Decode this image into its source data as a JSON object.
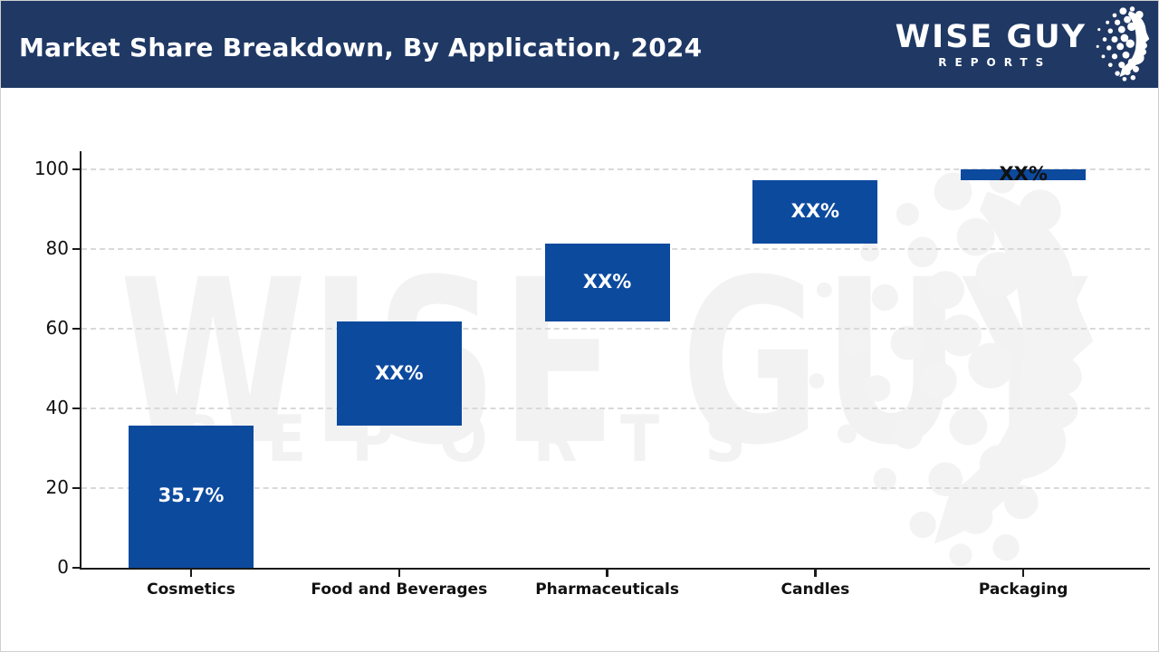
{
  "header": {
    "title": "Market Share Breakdown, By Application, 2024",
    "bg_color": "#1f3864",
    "brand_line1": "WISE GUY",
    "brand_line2": "REPORTS"
  },
  "watermark": {
    "line1": "WISE GUY",
    "line2": "REPORTS"
  },
  "chart_data": {
    "type": "bar",
    "subtype": "waterfall",
    "title": "Market Share Breakdown, By Application, 2024",
    "xlabel": "",
    "ylabel": "",
    "ylim": [
      0,
      105
    ],
    "y_ticks": [
      0,
      20,
      40,
      60,
      80,
      100
    ],
    "grid": "horizontal-dashed",
    "legend": "none",
    "bar_color": "#0c4a9e",
    "axis_color": "#1a1a1a",
    "gridline_color": "#d9d9d9",
    "categories": [
      "Cosmetics",
      "Food and Beverages",
      "Pharmaceuticals",
      "Candles",
      "Packaging"
    ],
    "segments": [
      {
        "category": "Cosmetics",
        "start": 0,
        "end": 35.7,
        "value": 35.7,
        "label": "35.7%",
        "label_color": "#ffffff"
      },
      {
        "category": "Food and Beverages",
        "start": 35.7,
        "end": 61.8,
        "value": 26.1,
        "label": "XX%",
        "label_color": "#ffffff"
      },
      {
        "category": "Pharmaceuticals",
        "start": 61.8,
        "end": 81.4,
        "value": 19.6,
        "label": "XX%",
        "label_color": "#ffffff"
      },
      {
        "category": "Candles",
        "start": 81.4,
        "end": 97.3,
        "value": 15.9,
        "label": "XX%",
        "label_color": "#ffffff"
      },
      {
        "category": "Packaging",
        "start": 97.3,
        "end": 100.0,
        "value": 2.7,
        "label": "XX%",
        "label_color": "#111111"
      }
    ]
  }
}
